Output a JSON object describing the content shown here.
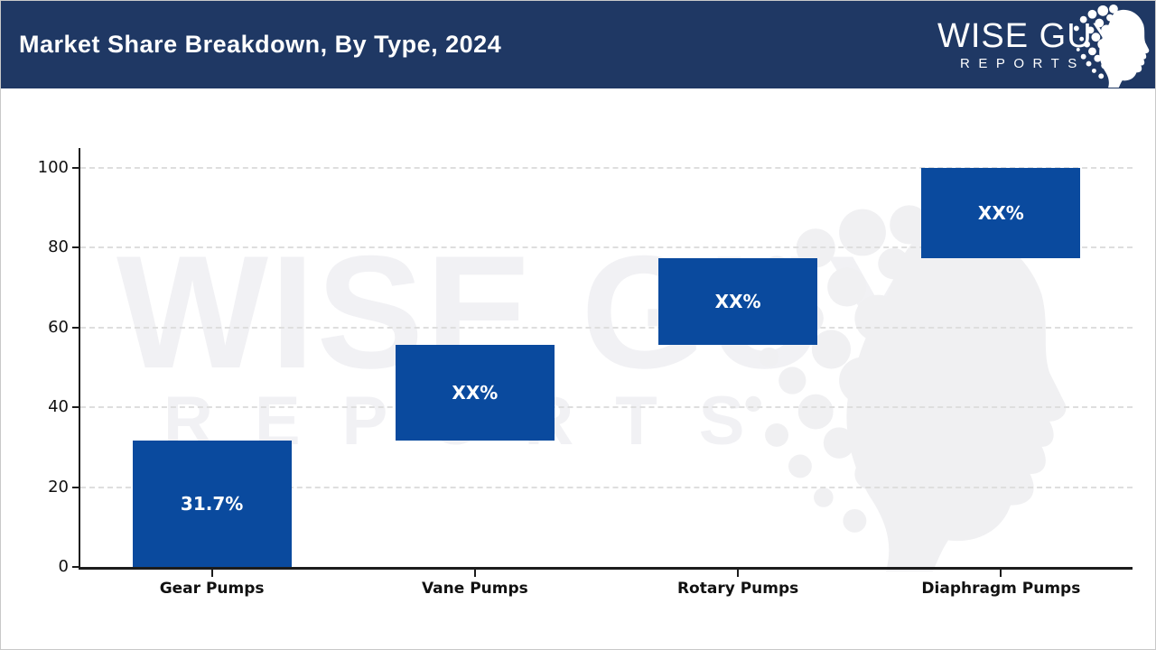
{
  "header": {
    "title": "Market Share Breakdown, By Type, 2024",
    "bg_color": "#1f3864",
    "brand": {
      "line1": "WISE GUY",
      "line2": "REPORTS"
    }
  },
  "watermark": {
    "line1": "WISE GUY",
    "line2": "REPORTS"
  },
  "chart_data": {
    "type": "bar",
    "subtype": "waterfall",
    "title": "Market Share Breakdown, By Type, 2024",
    "categories": [
      "Gear Pumps",
      "Vane Pumps",
      "Rotary Pumps",
      "Diaphragm Pumps"
    ],
    "segments": [
      {
        "category": "Gear Pumps",
        "start": 0,
        "end": 31.7,
        "label": "31.7%"
      },
      {
        "category": "Vane Pumps",
        "start": 31.7,
        "end": 55.6,
        "label": "XX%"
      },
      {
        "category": "Rotary Pumps",
        "start": 55.6,
        "end": 77.3,
        "label": "XX%"
      },
      {
        "category": "Diaphragm Pumps",
        "start": 77.3,
        "end": 100,
        "label": "XX%"
      }
    ],
    "y_ticks": [
      0,
      20,
      40,
      60,
      80,
      100
    ],
    "ylim": [
      0,
      105
    ],
    "xlabel": "",
    "ylabel": "",
    "legend": null,
    "grid": "horizontal-dashed",
    "bar_color": "#0a4a9e",
    "label_color": "#ffffff",
    "axis_color": "#1c1c1c",
    "gridline_color": "#dedede"
  }
}
